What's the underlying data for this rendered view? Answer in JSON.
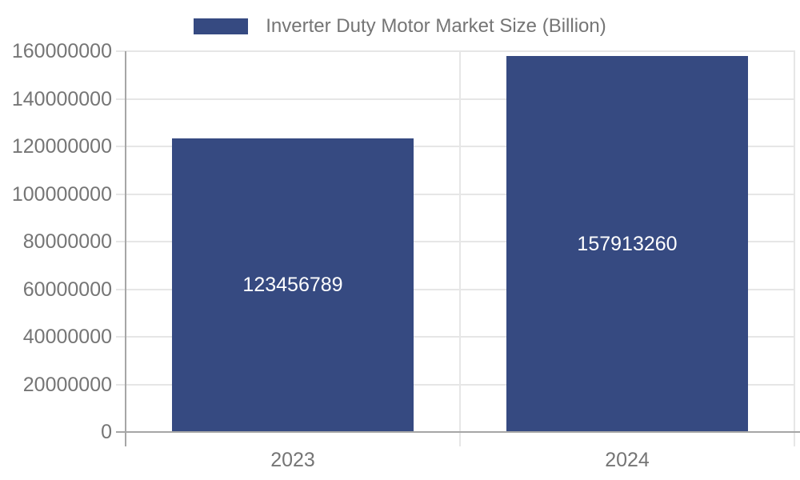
{
  "legend": {
    "label": "Inverter Duty Motor Market Size (Billion)"
  },
  "colors": {
    "bar": "#364a81",
    "grid": "#e6e6e6",
    "axis": "#a6a6a6",
    "tick_text": "#757575",
    "legend_text": "#757575",
    "data_label_text": "#ffffff",
    "background": "#ffffff"
  },
  "chart_data": {
    "type": "bar",
    "title": "",
    "xlabel": "",
    "ylabel": "",
    "categories": [
      "2023",
      "2024"
    ],
    "series": [
      {
        "name": "Inverter Duty Motor Market Size (Billion)",
        "values": [
          123456789,
          157913260
        ]
      }
    ],
    "data_labels": [
      "123456789",
      "157913260"
    ],
    "yticks": [
      0,
      20000000,
      40000000,
      60000000,
      80000000,
      100000000,
      120000000,
      140000000,
      160000000
    ],
    "ytick_labels": [
      "0",
      "20000000",
      "40000000",
      "60000000",
      "80000000",
      "100000000",
      "120000000",
      "140000000",
      "160000000"
    ],
    "ylim": [
      0,
      160000000
    ],
    "grid": true,
    "legend_position": "top"
  }
}
